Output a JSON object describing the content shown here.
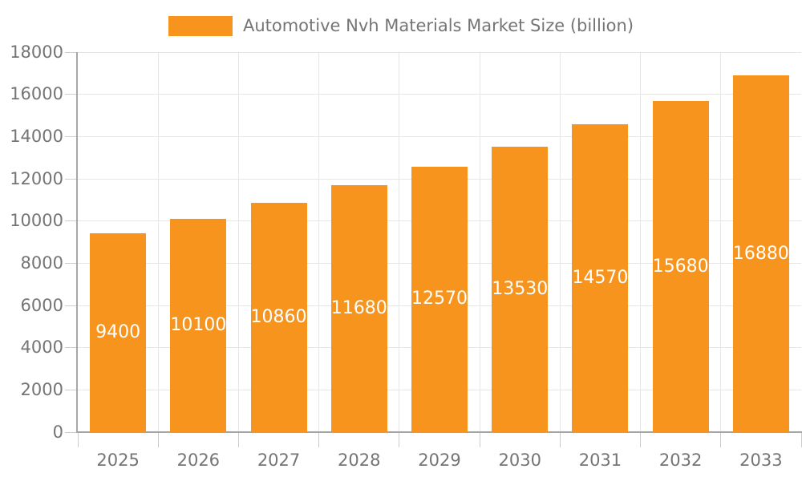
{
  "chart_data": {
    "type": "bar",
    "title": "Automotive Nvh Materials Market Size (billion)",
    "categories": [
      "2025",
      "2026",
      "2027",
      "2028",
      "2029",
      "2030",
      "2031",
      "2032",
      "2033"
    ],
    "values": [
      9400,
      10100,
      10860,
      11680,
      12570,
      13530,
      14570,
      15680,
      16880
    ],
    "xlabel": "",
    "ylabel": "",
    "ylim": [
      0,
      18000
    ],
    "yticks": [
      0,
      2000,
      4000,
      6000,
      8000,
      10000,
      12000,
      14000,
      16000,
      18000
    ],
    "grid": true,
    "legend_position": "top-center",
    "bar_label_position": "inside-center",
    "colors": {
      "bar": "#f7941e",
      "bar_label": "#ffffff",
      "axis_text": "#757575",
      "axis_line": "#a6a6a6",
      "tick": "#cccccc",
      "grid": "#e6e6e6",
      "background": "#ffffff"
    }
  }
}
